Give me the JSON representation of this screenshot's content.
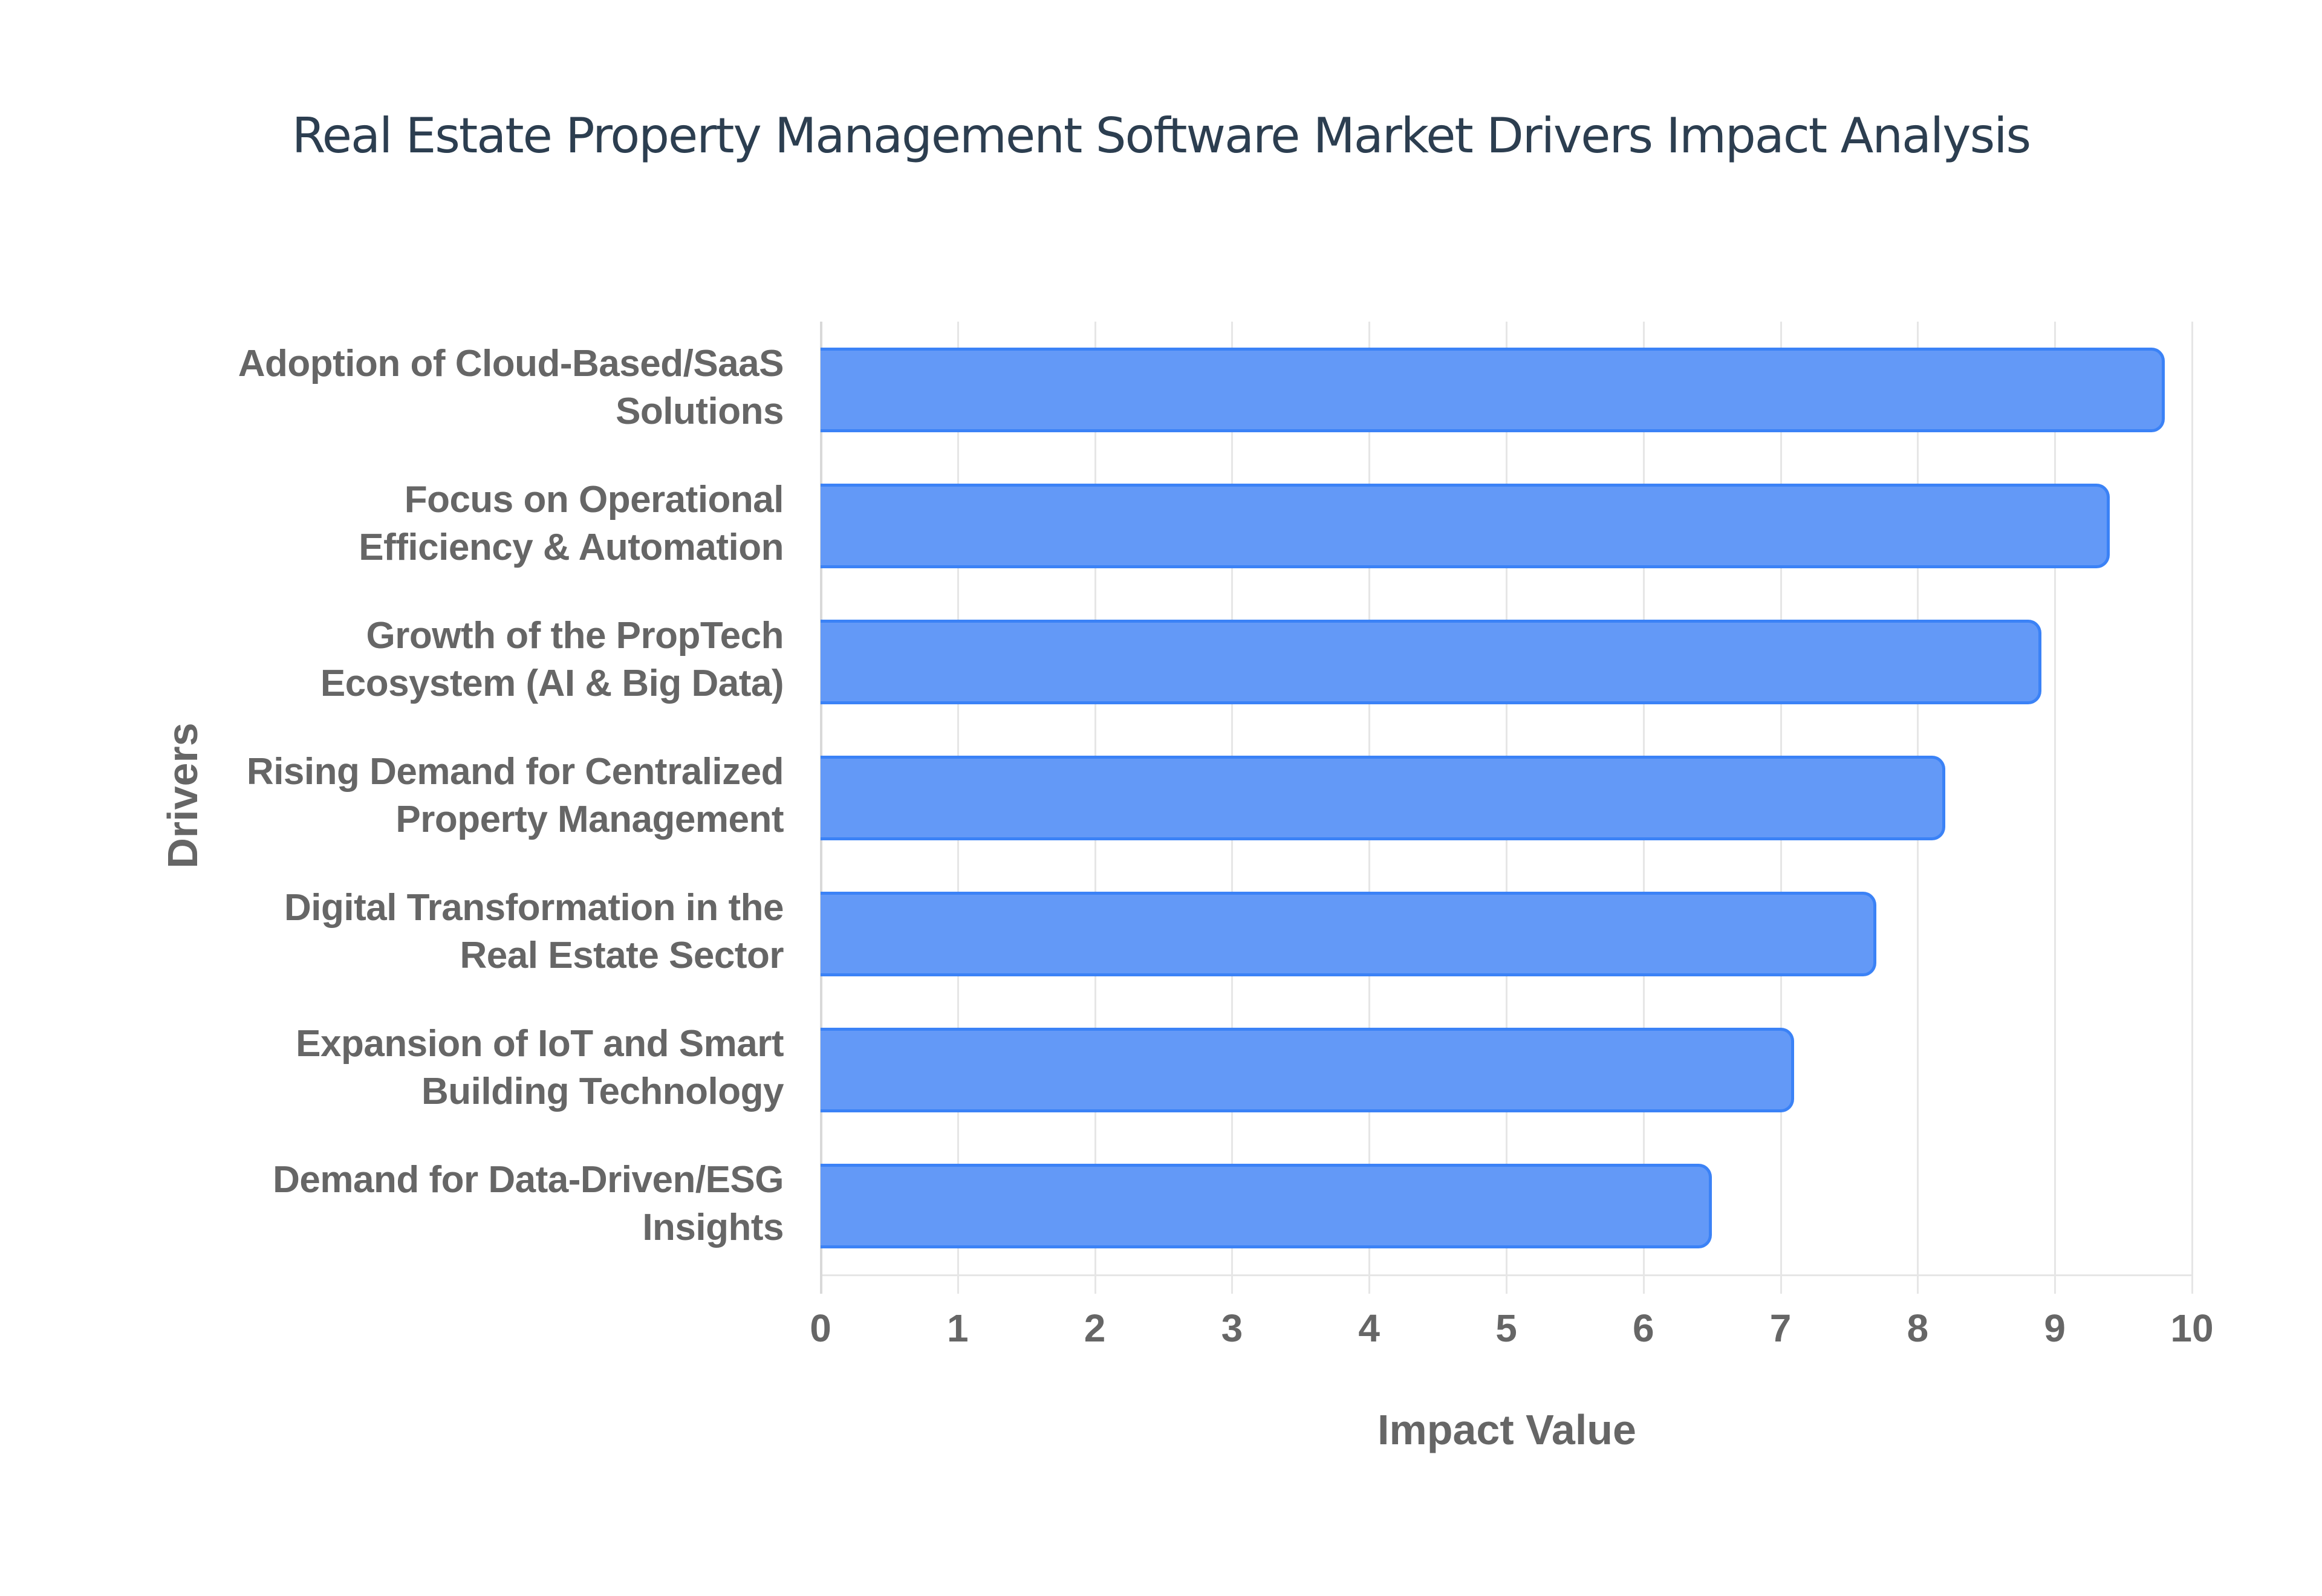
{
  "chart_data": {
    "type": "bar",
    "orientation": "horizontal",
    "title": "Real Estate Property Management Software Market Drivers Impact Analysis",
    "xlabel": "Impact Value",
    "ylabel": "Drivers",
    "xlim": [
      0,
      10
    ],
    "xticks": [
      "0",
      "1",
      "2",
      "3",
      "4",
      "5",
      "6",
      "7",
      "8",
      "9",
      "10"
    ],
    "grid": {
      "vertical": true,
      "horizontal": false
    },
    "legend": null,
    "categories": [
      "Adoption of Cloud-Based/SaaS Solutions",
      "Focus on Operational Efficiency & Automation",
      "Growth of the PropTech Ecosystem (AI & Big Data)",
      "Rising Demand for Centralized Property Management",
      "Digital Transformation in the Real Estate Sector",
      "Expansion of IoT and Smart Building Technology",
      "Demand for Data-Driven/ESG Insights"
    ],
    "category_lines": [
      [
        "Adoption of Cloud-Based/SaaS",
        "Solutions"
      ],
      [
        "Focus on Operational",
        "Efficiency & Automation"
      ],
      [
        "Growth of the PropTech",
        "Ecosystem (AI & Big Data)"
      ],
      [
        "Rising Demand for Centralized",
        "Property Management"
      ],
      [
        "Digital Transformation in the",
        "Real Estate Sector"
      ],
      [
        "Expansion of IoT and Smart",
        "Building Technology"
      ],
      [
        "Demand for Data-Driven/ESG",
        "Insights"
      ]
    ],
    "values": [
      9.8,
      9.4,
      8.9,
      8.2,
      7.7,
      7.1,
      6.5
    ],
    "colors": {
      "bar_fill": "#6399f7",
      "bar_border": "#3b82f6",
      "title": "#2c3e50",
      "axis_text": "#666666",
      "grid": "#e6e6e6"
    }
  }
}
